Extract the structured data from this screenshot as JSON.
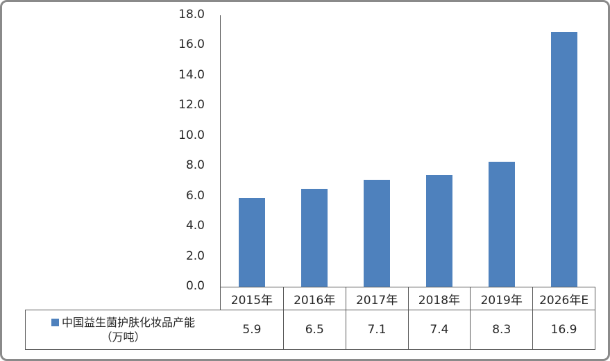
{
  "chart_data": {
    "type": "bar",
    "categories": [
      "2015年",
      "2016年",
      "2017年",
      "2018年",
      "2019年",
      "2026年E"
    ],
    "series": [
      {
        "name": "中国益生菌护肤化妆品产能（万吨）",
        "values": [
          5.9,
          6.5,
          7.1,
          7.4,
          8.3,
          16.9
        ]
      }
    ],
    "title": "",
    "xlabel": "",
    "ylabel": "",
    "ylim": [
      0,
      18
    ],
    "ytick_step": 2,
    "ytick_decimals": 1,
    "value_decimals": 1,
    "grid": false,
    "legend_position": "bottom-table"
  },
  "legend": {
    "label_line1": "中国益生菌护肤化妆品产能",
    "label_line2": "（万吨）"
  },
  "colors": {
    "bar": "#4E81BD",
    "axis_and_table_lines": "#595959",
    "outer_border": "#8A8A8A",
    "text": "#262626",
    "background": "#FFFFFF"
  }
}
